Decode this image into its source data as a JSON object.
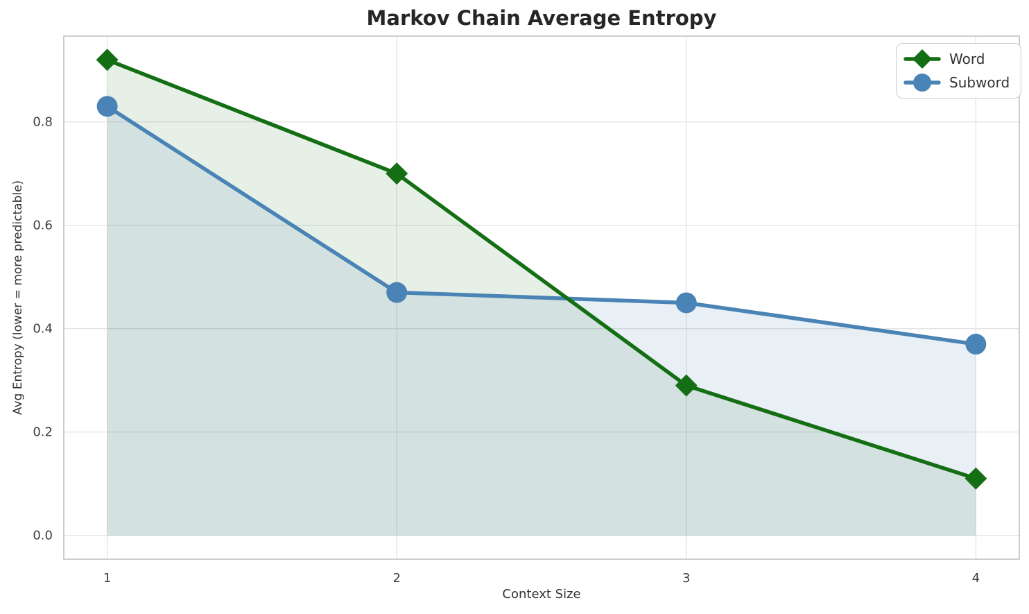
{
  "chart_data": {
    "type": "line",
    "title": "Markov Chain Average Entropy",
    "xlabel": "Context Size",
    "ylabel": "Avg Entropy (lower = more predictable)",
    "x": [
      1,
      2,
      3,
      4
    ],
    "series": [
      {
        "name": "Word",
        "values": [
          0.92,
          0.7,
          0.29,
          0.11
        ],
        "color": "#146f14",
        "marker": "diamond",
        "fill_to_zero": true,
        "fill_opacity": 0.1
      },
      {
        "name": "Subword",
        "values": [
          0.83,
          0.47,
          0.45,
          0.37
        ],
        "color": "#4a83b5",
        "marker": "circle",
        "fill_to_zero": true,
        "fill_opacity": 0.13
      }
    ],
    "xticks": [
      1,
      2,
      3,
      4
    ],
    "xtick_labels": [
      "1",
      "2",
      "3",
      "4"
    ],
    "yticks": [
      0,
      0.2,
      0.4,
      0.6,
      0.8
    ],
    "ytick_labels": [
      "0.0",
      "0.2",
      "0.4",
      "0.6",
      "0.8"
    ],
    "xlim": [
      0.85,
      4.15
    ],
    "ylim": [
      -0.046,
      0.966
    ],
    "grid": true,
    "grid_color": "#e4e4e4",
    "spine_color": "#c8c8c8",
    "tick_color": "#3d3d3d",
    "title_color": "#262626",
    "legend_position": "upper right"
  }
}
